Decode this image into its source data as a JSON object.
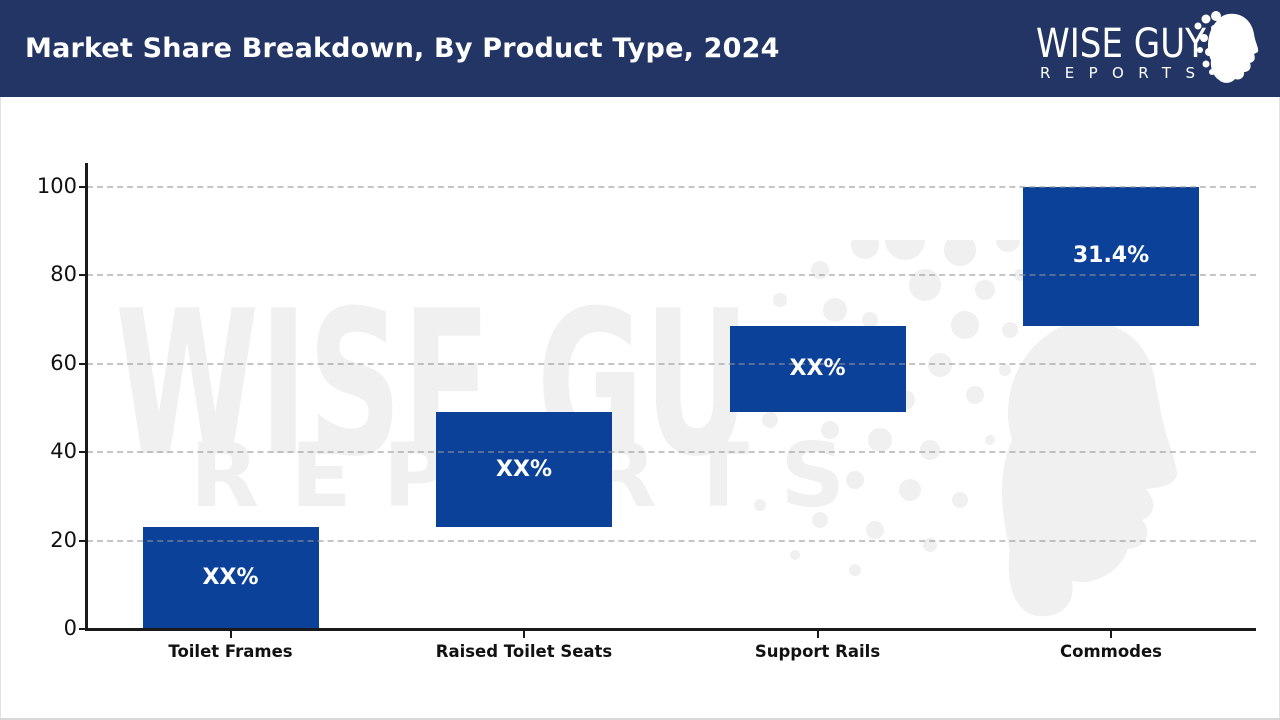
{
  "header": {
    "title": "Market Share Breakdown, By Product Type, 2024",
    "bg_color": "#223564",
    "logo": {
      "line1": "WISE GUY",
      "line2": "REPORTS"
    }
  },
  "watermark": {
    "text1": "WISE GU",
    "text2": "R E P O R T S",
    "color": "#f0f0f1"
  },
  "chart_data": {
    "type": "bar",
    "variant": "waterfall",
    "title": "Market Share Breakdown, By Product Type, 2024",
    "categories": [
      "Toilet Frames",
      "Raised Toilet Seats",
      "Support Rails",
      "Commodes"
    ],
    "series": [
      {
        "name": "Market Share (%)",
        "segment_start": [
          0,
          23,
          49,
          68.6
        ],
        "segment_end": [
          23,
          49,
          68.6,
          100
        ],
        "values": [
          23,
          26,
          19.6,
          31.4
        ]
      }
    ],
    "bar_labels": [
      "XX%",
      "XX%",
      "XX%",
      "31.4%"
    ],
    "yticks": [
      0,
      20,
      40,
      60,
      80,
      100
    ],
    "ylim": [
      0,
      105
    ],
    "xlabel": "",
    "ylabel": "",
    "grid": "horizontal-dashed-over-bars",
    "legend": "none",
    "bar_color": "#0c4199",
    "axis_color": "#1a1a1a"
  }
}
